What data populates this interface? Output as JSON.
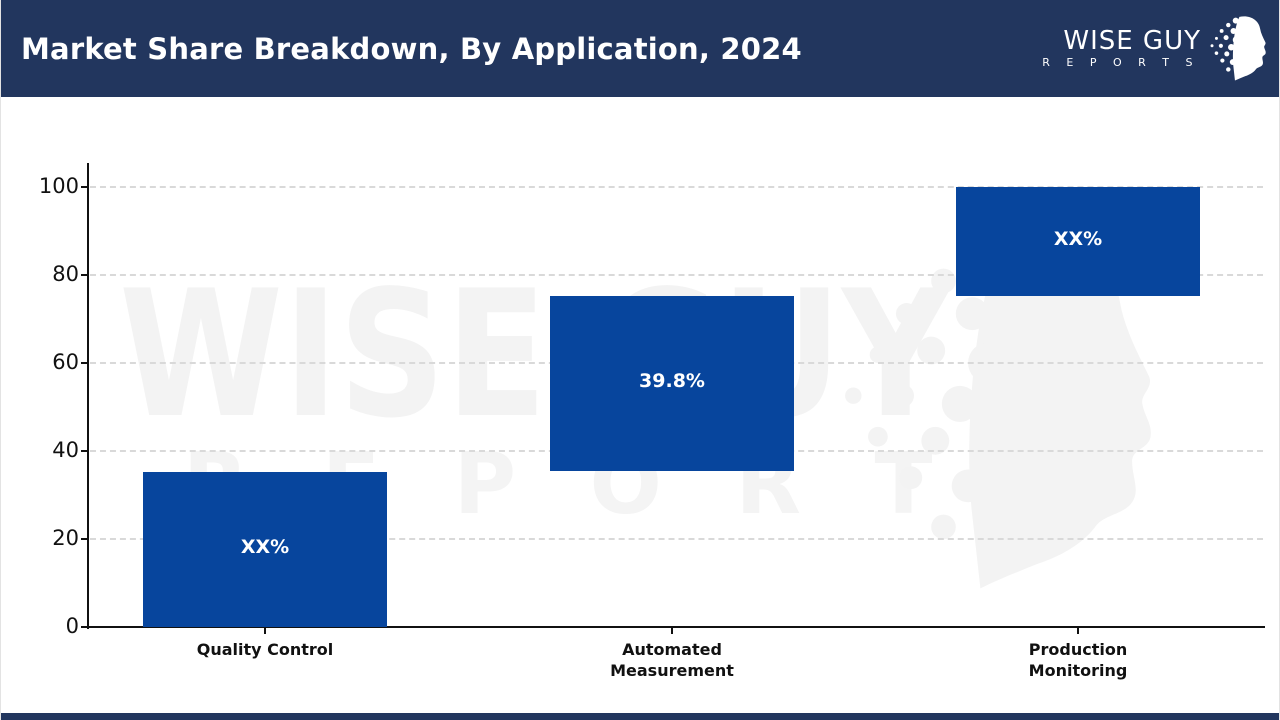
{
  "header": {
    "title": "Market Share Breakdown, By Application, 2024",
    "logo": {
      "line1": "WISE GUY",
      "line2": "R E P O R T S"
    }
  },
  "watermark": {
    "line1": "WISE GUY",
    "line2": "R E P O R T S"
  },
  "footer": {},
  "colors": {
    "header_bg": "#22365e",
    "footer_bg": "#22365e",
    "bar": "#07459d",
    "gridline": "#d9d9d9",
    "axis": "#111111",
    "watermark": "#f3f3f3",
    "title_text": "#ffffff",
    "bar_label_text": "#ffffff"
  },
  "chart_data": {
    "type": "bar",
    "subtype": "floating-stacked-breakdown",
    "title": "Market Share Breakdown, By Application, 2024",
    "categories": [
      "Quality Control",
      "Automated Measurement",
      "Production Monitoring"
    ],
    "category_lines": [
      [
        "Quality Control"
      ],
      [
        "Automated",
        "Measurement"
      ],
      [
        "Production",
        "Monitoring"
      ]
    ],
    "bars": [
      {
        "category": "Quality Control",
        "start": 0,
        "end": 35.3,
        "label": "XX%"
      },
      {
        "category": "Automated Measurement",
        "start": 35.5,
        "end": 75.3,
        "label": "39.8%"
      },
      {
        "category": "Production Monitoring",
        "start": 75.3,
        "end": 100,
        "label": "XX%"
      }
    ],
    "xlabel": "",
    "ylabel": "",
    "ylim": [
      0,
      100
    ],
    "yticks": [
      0,
      20,
      40,
      60,
      80,
      100
    ],
    "grid": "horizontal-dashed",
    "legend": "none",
    "bar_color": "#07459d"
  }
}
